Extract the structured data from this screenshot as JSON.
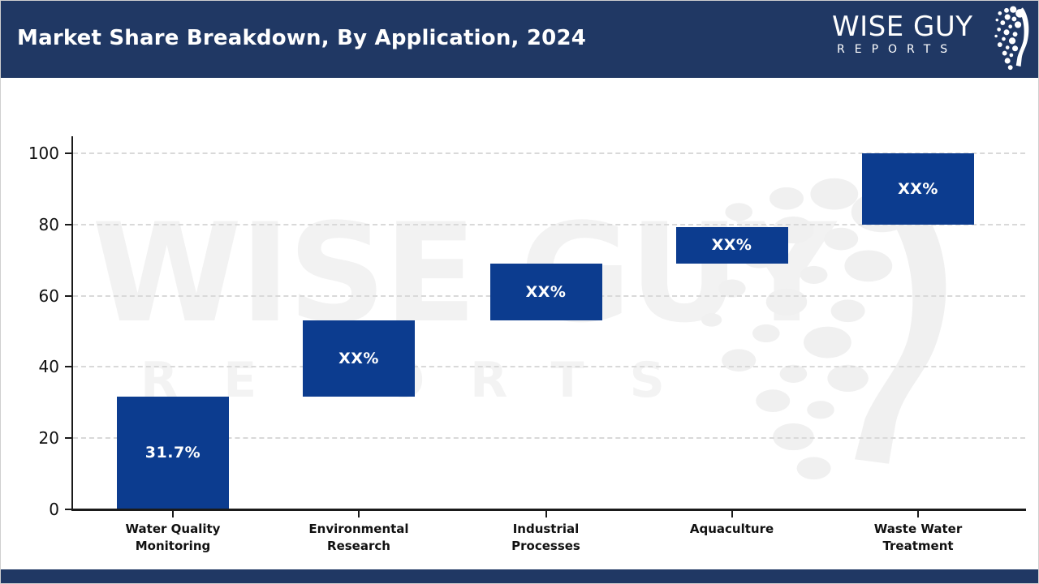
{
  "header": {
    "title": "Market Share Breakdown, By Application, 2024",
    "bg_color": "#203864",
    "logo": {
      "primary": "WISE GUY",
      "secondary": "REPORTS"
    }
  },
  "watermark": {
    "primary": "WISE GUY",
    "secondary": "REPORTS"
  },
  "chart_data": {
    "type": "bar",
    "subtype": "floating-waterfall",
    "title": "Market Share Breakdown, By Application, 2024",
    "categories": [
      "Water Quality Monitoring",
      "Environmental Research",
      "Industrial Processes",
      "Aquaculture",
      "Waste Water Treatment"
    ],
    "bars": [
      {
        "category_lines": [
          "Water Quality",
          "Monitoring"
        ],
        "start": 0,
        "end": 31.7,
        "label": "31.7%"
      },
      {
        "category_lines": [
          "Environmental",
          "Research"
        ],
        "start": 31.7,
        "end": 53,
        "label": "XX%"
      },
      {
        "category_lines": [
          "Industrial",
          "Processes"
        ],
        "start": 53,
        "end": 69,
        "label": "XX%"
      },
      {
        "category_lines": [
          "Aquaculture"
        ],
        "start": 69,
        "end": 79.3,
        "label": "XX%"
      },
      {
        "category_lines": [
          "Waste Water",
          "Treatment"
        ],
        "start": 80,
        "end": 100,
        "label": "XX%"
      }
    ],
    "ylim": [
      0,
      100
    ],
    "yticks": [
      0,
      20,
      40,
      60,
      80,
      100
    ],
    "xlabel": "",
    "ylabel": "",
    "grid": "horizontal-dashed",
    "legend": "none",
    "bar_color": "#0c3c8f",
    "grid_color": "#d9d9d9",
    "axis_color": "#1a1a1a"
  }
}
